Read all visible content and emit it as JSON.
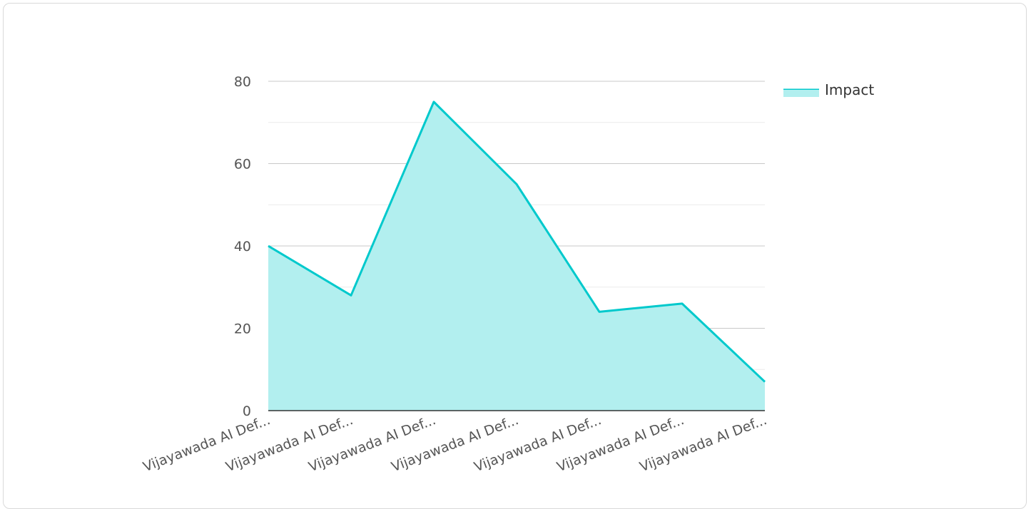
{
  "chart_data": {
    "type": "area",
    "categories": [
      "Vijayawada AI Def...",
      "Vijayawada AI Def...",
      "Vijayawada AI Def...",
      "Vijayawada AI Def...",
      "Vijayawada AI Def...",
      "Vijayawada AI Def...",
      "Vijayawada AI Def..."
    ],
    "series": [
      {
        "name": "Impact",
        "values": [
          40,
          28,
          75,
          55,
          24,
          26,
          7
        ],
        "color": "#00c9cc",
        "fill": "#b2efef"
      }
    ],
    "yticks": [
      0,
      20,
      40,
      60,
      80
    ],
    "ylim": [
      0,
      80
    ],
    "grid": true,
    "legend_position": "top-right"
  }
}
